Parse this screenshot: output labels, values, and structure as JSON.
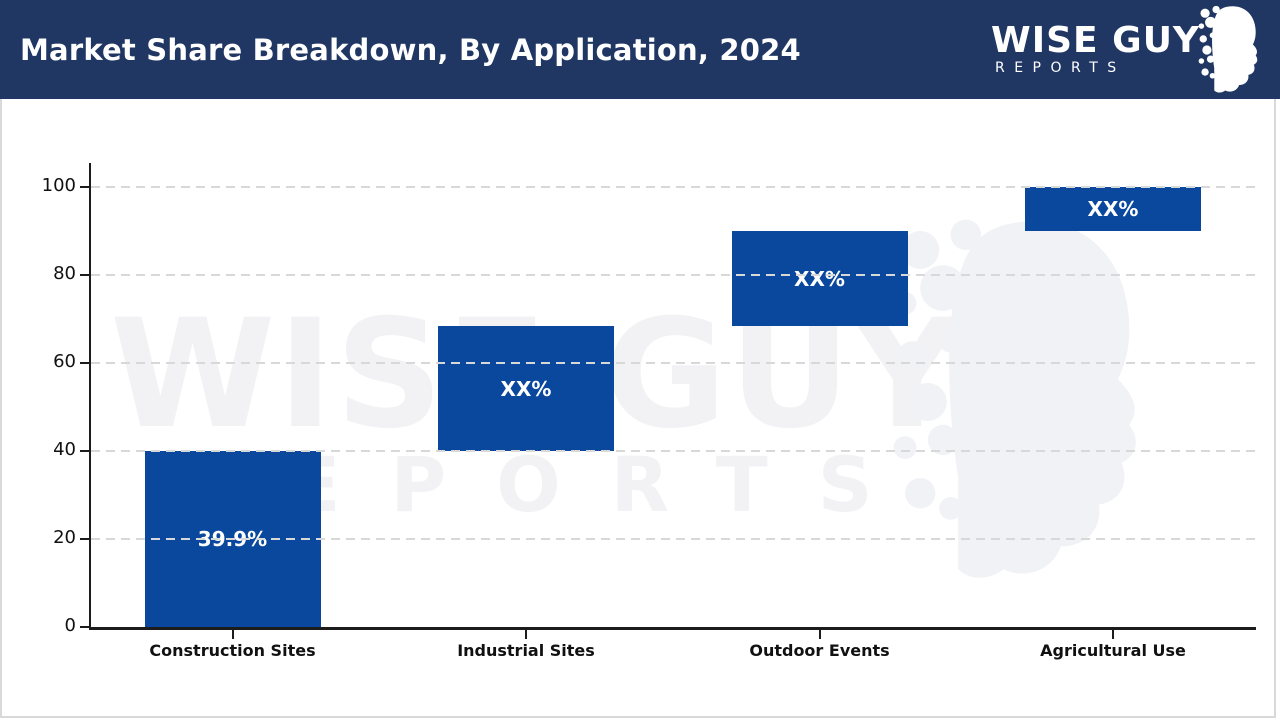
{
  "header": {
    "title": "Market Share Breakdown, By Application, 2024",
    "brand": {
      "wordmark": "WISE GUY",
      "subtext": "REPORTS"
    }
  },
  "watermark": {
    "line1": "WISE GUY",
    "line2": "REPORTS"
  },
  "chart_data": {
    "type": "bar",
    "subtype": "waterfall",
    "title": "Market Share Breakdown, By Application, 2024",
    "categories": [
      "Construction Sites",
      "Industrial Sites",
      "Outdoor Events",
      "Agricultural Use"
    ],
    "segments": [
      {
        "category": "Construction Sites",
        "label": "39.9%",
        "start": 0,
        "end": 39.9
      },
      {
        "category": "Industrial Sites",
        "label": "XX%",
        "start": 39.9,
        "end": 68.3
      },
      {
        "category": "Outdoor Events",
        "label": "XX%",
        "start": 68.3,
        "end": 90.0
      },
      {
        "category": "Agricultural Use",
        "label": "XX%",
        "start": 90.0,
        "end": 100.0
      }
    ],
    "bar_labels": [
      "39.9%",
      "XX%",
      "XX%",
      "XX%"
    ],
    "yticks": [
      0,
      20,
      40,
      60,
      80,
      100
    ],
    "ylim": [
      0,
      105
    ],
    "xlabel": "",
    "ylabel": "",
    "grid": "horizontal-dashed",
    "legend": "none",
    "bar_color": "#0a489e"
  },
  "colors": {
    "header_bg": "#203764",
    "bar": "#0a489e",
    "bar_label_text": "#ffffff",
    "axis": "#1c1c1c",
    "gridline": "#d8d8d8",
    "watermark": "#f2f2f5",
    "frame_border": "#d9d9d9"
  }
}
